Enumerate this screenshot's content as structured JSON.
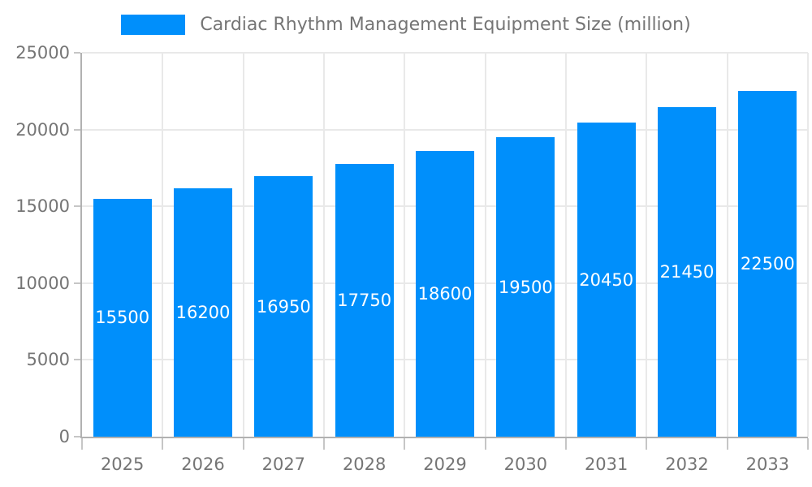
{
  "legend": {
    "label": "Cardiac Rhythm Management Equipment Size (million)"
  },
  "chart_data": {
    "type": "bar",
    "title": "Cardiac Rhythm Management Equipment Size (million)",
    "categories": [
      "2025",
      "2026",
      "2027",
      "2028",
      "2029",
      "2030",
      "2031",
      "2032",
      "2033"
    ],
    "values": [
      15500,
      16200,
      16950,
      17750,
      18600,
      19500,
      20450,
      21450,
      22500
    ],
    "xlabel": "",
    "ylabel": "",
    "ylim": [
      0,
      25000
    ],
    "y_ticks": [
      0,
      5000,
      10000,
      15000,
      20000,
      25000
    ],
    "grid": true,
    "legend_position": "top",
    "bar_color": "#008FFB",
    "value_label_position": "inside-center",
    "value_label_color": "#FFFFFF",
    "axis_text_color": "#757575"
  }
}
